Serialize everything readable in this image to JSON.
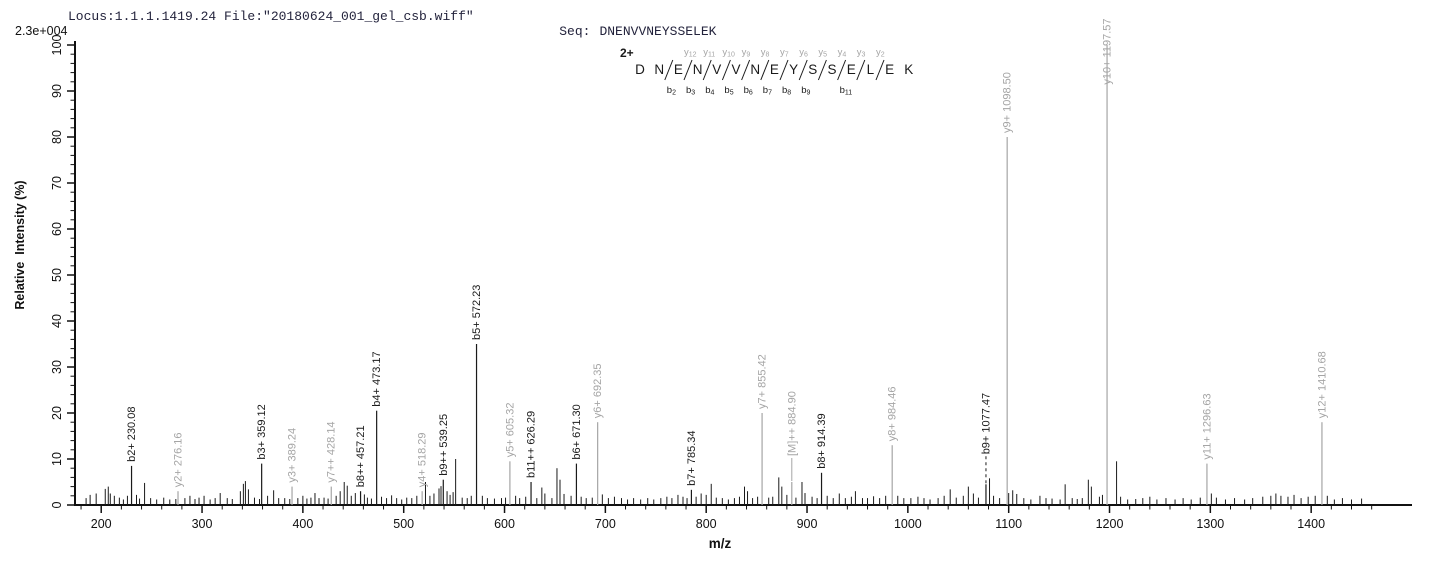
{
  "header": {
    "locus_file": "Locus:1.1.1.1419.24 File:\"20180624_001_gel_csb.wiff\"",
    "seq_label": "Seq:",
    "seq_value": "DNENVVNEYSSELEK",
    "intensity_scale": "2.3e+004"
  },
  "colors": {
    "b_series": "#1a1a1a",
    "y_series": "#a5a5a5",
    "precursor": "#a5a5a5",
    "noise": "#1a1a1a",
    "axis": "#111111"
  },
  "chart_data": {
    "type": "bar",
    "title": "",
    "xlabel": "m/z",
    "ylabel": "Relative  Intensity (%)",
    "xlim": [
      174,
      1500
    ],
    "ylim": [
      0,
      100
    ],
    "x_major_ticks": [
      200,
      300,
      400,
      500,
      600,
      700,
      800,
      900,
      1000,
      1100,
      1200,
      1300,
      1400
    ],
    "x_minor_range": [
      180,
      1460
    ],
    "x_minor_step": 20,
    "y_major_ticks": [
      0,
      10,
      20,
      30,
      40,
      50,
      60,
      70,
      80,
      90,
      100
    ],
    "y_minor_step": 2,
    "grid": false,
    "legend": false,
    "precursor": {
      "charge_label": "2+",
      "residues": [
        "D",
        "N",
        "E",
        "N",
        "V",
        "V",
        "N",
        "E",
        "Y",
        "S",
        "S",
        "E",
        "L",
        "E",
        "K"
      ],
      "cleavages": [
        {
          "after": 2,
          "b": "b2",
          "y": null
        },
        {
          "after": 3,
          "b": "b3",
          "y": "y12"
        },
        {
          "after": 4,
          "b": "b4",
          "y": "y11"
        },
        {
          "after": 5,
          "b": "b5",
          "y": "y10"
        },
        {
          "after": 6,
          "b": "b6",
          "y": "y9"
        },
        {
          "after": 7,
          "b": "b7",
          "y": "y8"
        },
        {
          "after": 8,
          "b": "b8",
          "y": "y7"
        },
        {
          "after": 9,
          "b": "b9",
          "y": "y6"
        },
        {
          "after": 10,
          "b": null,
          "y": "y5"
        },
        {
          "after": 11,
          "b": "b11",
          "y": "y4"
        },
        {
          "after": 12,
          "b": null,
          "y": "y3"
        },
        {
          "after": 13,
          "b": null,
          "y": "y2"
        }
      ]
    },
    "labeled_peaks": [
      {
        "label": "b2+ 230.08",
        "mz": 230.08,
        "intensity": 8.5,
        "series": "b"
      },
      {
        "label": "y2+ 276.16",
        "mz": 276.16,
        "intensity": 3,
        "series": "y"
      },
      {
        "label": "b3+ 359.12",
        "mz": 359.12,
        "intensity": 9,
        "series": "b"
      },
      {
        "label": "y3+ 389.24",
        "mz": 389.24,
        "intensity": 4,
        "series": "y"
      },
      {
        "label": "y7++ 428.14",
        "mz": 428.14,
        "intensity": 4,
        "series": "y"
      },
      {
        "label": "b8++ 457.21",
        "mz": 457.21,
        "intensity": 3,
        "series": "b"
      },
      {
        "label": "b4+ 473.17",
        "mz": 473.17,
        "intensity": 20.5,
        "series": "b"
      },
      {
        "label": "y4+ 518.29",
        "mz": 518.29,
        "intensity": 3,
        "series": "y"
      },
      {
        "label": "b9++ 539.25",
        "mz": 539.25,
        "intensity": 5.5,
        "series": "b"
      },
      {
        "label": "b5+ 572.23",
        "mz": 572.23,
        "intensity": 35,
        "series": "b"
      },
      {
        "label": "y5+ 605.32",
        "mz": 605.32,
        "intensity": 9.5,
        "series": "y"
      },
      {
        "label": "b11++ 626.29",
        "mz": 626.29,
        "intensity": 5,
        "series": "b"
      },
      {
        "label": "b6+ 671.30",
        "mz": 671.3,
        "intensity": 9,
        "series": "b"
      },
      {
        "label": "y6+ 692.35",
        "mz": 692.35,
        "intensity": 18,
        "series": "y"
      },
      {
        "label": "b7+ 785.34",
        "mz": 785.34,
        "intensity": 3.3,
        "series": "b"
      },
      {
        "label": "y7+ 855.42",
        "mz": 855.42,
        "intensity": 20,
        "series": "y"
      },
      {
        "label": "[M]++ 884.90",
        "mz": 884.9,
        "intensity": 5,
        "series": "precursor",
        "raise": 22
      },
      {
        "label": "b8+ 914.39",
        "mz": 914.39,
        "intensity": 7,
        "series": "b"
      },
      {
        "label": "y8+ 984.46",
        "mz": 984.46,
        "intensity": 13,
        "series": "y"
      },
      {
        "label": "b9+ 1077.47",
        "mz": 1077.47,
        "intensity": 4.5,
        "series": "b",
        "raise": 26,
        "dashed": true
      },
      {
        "label": "y9+ 1098.50",
        "mz": 1098.5,
        "intensity": 80,
        "series": "y"
      },
      {
        "label": "y10+ 1197.57",
        "mz": 1197.57,
        "intensity": 100,
        "series": "y"
      },
      {
        "label": "y11+ 1296.63",
        "mz": 1296.63,
        "intensity": 9,
        "series": "y"
      },
      {
        "label": "y12+ 1410.68",
        "mz": 1410.68,
        "intensity": 18,
        "series": "y"
      }
    ],
    "unlabeled_peaks": [
      [
        185,
        1.5
      ],
      [
        189,
        2.2
      ],
      [
        195,
        2.5
      ],
      [
        204,
        3.5
      ],
      [
        207,
        4
      ],
      [
        209,
        2.5
      ],
      [
        213,
        2
      ],
      [
        218,
        1.6
      ],
      [
        222,
        1.2
      ],
      [
        226,
        2
      ],
      [
        235,
        2.2
      ],
      [
        238,
        1.4
      ],
      [
        243,
        4.8
      ],
      [
        249,
        1.5
      ],
      [
        255,
        1.2
      ],
      [
        262,
        1.6
      ],
      [
        268,
        1.2
      ],
      [
        274,
        1.3
      ],
      [
        283,
        1.5
      ],
      [
        288,
        2
      ],
      [
        293,
        1.3
      ],
      [
        297,
        1.6
      ],
      [
        302,
        2
      ],
      [
        308,
        1.2
      ],
      [
        313,
        1.5
      ],
      [
        318,
        2.6
      ],
      [
        325,
        1.5
      ],
      [
        330,
        1.3
      ],
      [
        338,
        3
      ],
      [
        341,
        4.6
      ],
      [
        343,
        5.2
      ],
      [
        346,
        3.4
      ],
      [
        352,
        1.6
      ],
      [
        357,
        1.3
      ],
      [
        365,
        2
      ],
      [
        371,
        3.2
      ],
      [
        376,
        1.5
      ],
      [
        382,
        1.5
      ],
      [
        387,
        1.3
      ],
      [
        395,
        1.5
      ],
      [
        400,
        2
      ],
      [
        404,
        1.4
      ],
      [
        408,
        1.6
      ],
      [
        412,
        2.6
      ],
      [
        416,
        1.5
      ],
      [
        421,
        1.6
      ],
      [
        425,
        1.4
      ],
      [
        433,
        2
      ],
      [
        437,
        3
      ],
      [
        441,
        5
      ],
      [
        444,
        4.2
      ],
      [
        448,
        2
      ],
      [
        452,
        2.6
      ],
      [
        461,
        2.3
      ],
      [
        464,
        1.6
      ],
      [
        468,
        1.4
      ],
      [
        478,
        1.8
      ],
      [
        483,
        1.5
      ],
      [
        488,
        2.1
      ],
      [
        493,
        1.5
      ],
      [
        498,
        1.2
      ],
      [
        503,
        1.6
      ],
      [
        508,
        1.5
      ],
      [
        513,
        2
      ],
      [
        521.6,
        5
      ],
      [
        526,
        2
      ],
      [
        530,
        2.5
      ],
      [
        535,
        3.6
      ],
      [
        537,
        4.1
      ],
      [
        543,
        3
      ],
      [
        546,
        2.2
      ],
      [
        549,
        2.8
      ],
      [
        551.5,
        10
      ],
      [
        558,
        1.6
      ],
      [
        563,
        1.5
      ],
      [
        567,
        2
      ],
      [
        578,
        2
      ],
      [
        583,
        1.5
      ],
      [
        590,
        1.4
      ],
      [
        597,
        1.5
      ],
      [
        601,
        1.6
      ],
      [
        611,
        2
      ],
      [
        615,
        1.5
      ],
      [
        621,
        1.8
      ],
      [
        632,
        1.5
      ],
      [
        637,
        3.8
      ],
      [
        640,
        2.5
      ],
      [
        647,
        1.5
      ],
      [
        652,
        8
      ],
      [
        655,
        5.5
      ],
      [
        659,
        2.4
      ],
      [
        666,
        2
      ],
      [
        676,
        1.8
      ],
      [
        681,
        1.5
      ],
      [
        687,
        1.6
      ],
      [
        697,
        2.3
      ],
      [
        703,
        1.5
      ],
      [
        709,
        1.8
      ],
      [
        716,
        1.5
      ],
      [
        722,
        1.2
      ],
      [
        728,
        1.5
      ],
      [
        735,
        1.2
      ],
      [
        742,
        1.5
      ],
      [
        748,
        1.2
      ],
      [
        755,
        1.5
      ],
      [
        761,
        1.8
      ],
      [
        766,
        1.5
      ],
      [
        772,
        2.2
      ],
      [
        777,
        1.8
      ],
      [
        781,
        1.5
      ],
      [
        790,
        1.8
      ],
      [
        795,
        2.5
      ],
      [
        800,
        2.2
      ],
      [
        805,
        4.6
      ],
      [
        810,
        1.6
      ],
      [
        816,
        1.5
      ],
      [
        822,
        1.2
      ],
      [
        828,
        1.5
      ],
      [
        833,
        1.8
      ],
      [
        838,
        4
      ],
      [
        841,
        3
      ],
      [
        846,
        1.5
      ],
      [
        851,
        1.8
      ],
      [
        862,
        1.6
      ],
      [
        866,
        1.8
      ],
      [
        872,
        6
      ],
      [
        875,
        4
      ],
      [
        880,
        2.2
      ],
      [
        889,
        1.6
      ],
      [
        895,
        5
      ],
      [
        898,
        2.6
      ],
      [
        905,
        1.8
      ],
      [
        910,
        1.5
      ],
      [
        920,
        2
      ],
      [
        926,
        1.5
      ],
      [
        932,
        2.5
      ],
      [
        938,
        1.5
      ],
      [
        944,
        1.8
      ],
      [
        948,
        3
      ],
      [
        955,
        1.5
      ],
      [
        960,
        1.5
      ],
      [
        966,
        1.9
      ],
      [
        972,
        1.5
      ],
      [
        978,
        2
      ],
      [
        990,
        2
      ],
      [
        996,
        1.5
      ],
      [
        1003,
        1.5
      ],
      [
        1010,
        1.8
      ],
      [
        1016,
        1.5
      ],
      [
        1022,
        1.2
      ],
      [
        1030,
        1.5
      ],
      [
        1036,
        2
      ],
      [
        1042,
        3.4
      ],
      [
        1048,
        1.6
      ],
      [
        1055,
        2
      ],
      [
        1060,
        4
      ],
      [
        1065,
        2.5
      ],
      [
        1070,
        1.6
      ],
      [
        1081,
        5.8
      ],
      [
        1085,
        2
      ],
      [
        1091,
        1.5
      ],
      [
        1100,
        2.6
      ],
      [
        1104,
        3.2
      ],
      [
        1108,
        2.4
      ],
      [
        1115,
        1.5
      ],
      [
        1122,
        1.2
      ],
      [
        1131,
        2
      ],
      [
        1137,
        1.5
      ],
      [
        1143,
        1.4
      ],
      [
        1151,
        1.2
      ],
      [
        1156,
        4.5
      ],
      [
        1163,
        1.5
      ],
      [
        1168,
        1.3
      ],
      [
        1173,
        1.5
      ],
      [
        1179,
        5.5
      ],
      [
        1182,
        4
      ],
      [
        1190,
        1.8
      ],
      [
        1193,
        2.2
      ],
      [
        1207,
        9.5
      ],
      [
        1211,
        1.8
      ],
      [
        1218,
        1.2
      ],
      [
        1226,
        1.3
      ],
      [
        1233,
        1.5
      ],
      [
        1240,
        1.8
      ],
      [
        1247,
        1.2
      ],
      [
        1256,
        1.5
      ],
      [
        1265,
        1.2
      ],
      [
        1273,
        1.5
      ],
      [
        1281,
        1.2
      ],
      [
        1290,
        1.6
      ],
      [
        1301,
        2.5
      ],
      [
        1306,
        1.6
      ],
      [
        1315,
        1.2
      ],
      [
        1324,
        1.5
      ],
      [
        1334,
        1.2
      ],
      [
        1342,
        1.5
      ],
      [
        1352,
        1.8
      ],
      [
        1360,
        2
      ],
      [
        1365,
        2.5
      ],
      [
        1370,
        2
      ],
      [
        1377,
        1.8
      ],
      [
        1383,
        2.2
      ],
      [
        1390,
        1.5
      ],
      [
        1397,
        1.8
      ],
      [
        1404,
        2
      ],
      [
        1416,
        2
      ],
      [
        1423,
        1.2
      ],
      [
        1431,
        1.5
      ],
      [
        1440,
        1.2
      ],
      [
        1450,
        1.4
      ]
    ]
  }
}
